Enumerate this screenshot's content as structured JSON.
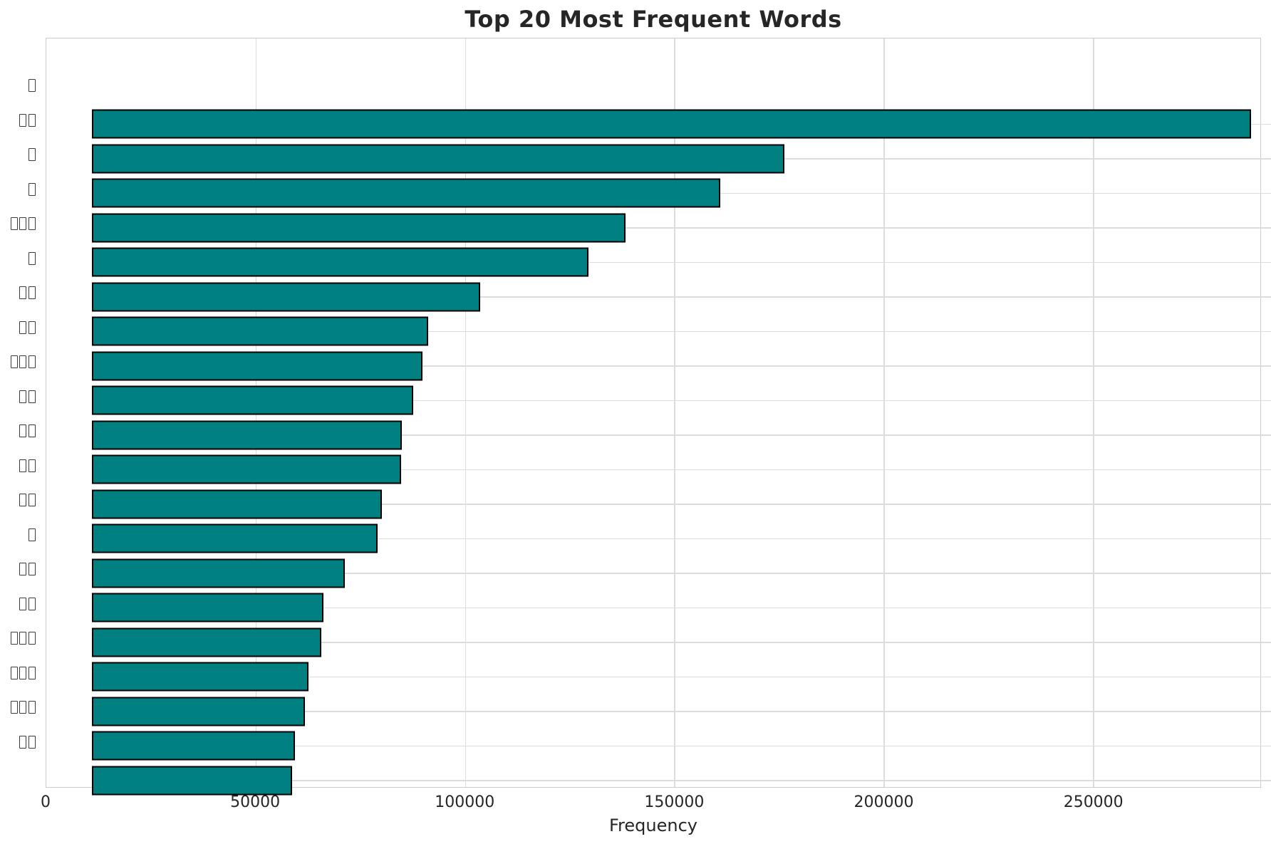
{
  "title": "Top 20 Most Frequent Words",
  "chart_data": {
    "type": "bar",
    "orientation": "horizontal",
    "title": "Top 20 Most Frequent Words",
    "xlabel": "Frequency",
    "ylabel": "",
    "grid": true,
    "legend": false,
    "xlim": [
      0,
      290000
    ],
    "x_ticks": [
      0,
      50000,
      100000,
      150000,
      200000,
      250000
    ],
    "x_tick_labels": [
      "0",
      "50000",
      "100000",
      "150000",
      "200000",
      "250000"
    ],
    "categories": [
      "□",
      "□□",
      "□",
      "□",
      "□□□",
      "□",
      "□□",
      "□□",
      "□□□",
      "□□",
      "□□",
      "□□",
      "□□",
      "□",
      "□□",
      "□□",
      "□□□",
      "□□□",
      "□□□",
      "□□"
    ],
    "categories_note": "y-axis labels are words whose glyphs are missing from the chart font; each renders as the shown number of tofu boxes",
    "values": [
      276500,
      165300,
      150000,
      127400,
      118400,
      92700,
      80300,
      78900,
      76700,
      74000,
      73800,
      69200,
      68200,
      60400,
      55300,
      54800,
      51700,
      50900,
      48500,
      47800
    ],
    "bar_color": "#008080",
    "bar_edge_color": "#000000",
    "grid_color": "#dcdcdc",
    "spine_color": "#cccccc",
    "text_color": "#262626"
  }
}
